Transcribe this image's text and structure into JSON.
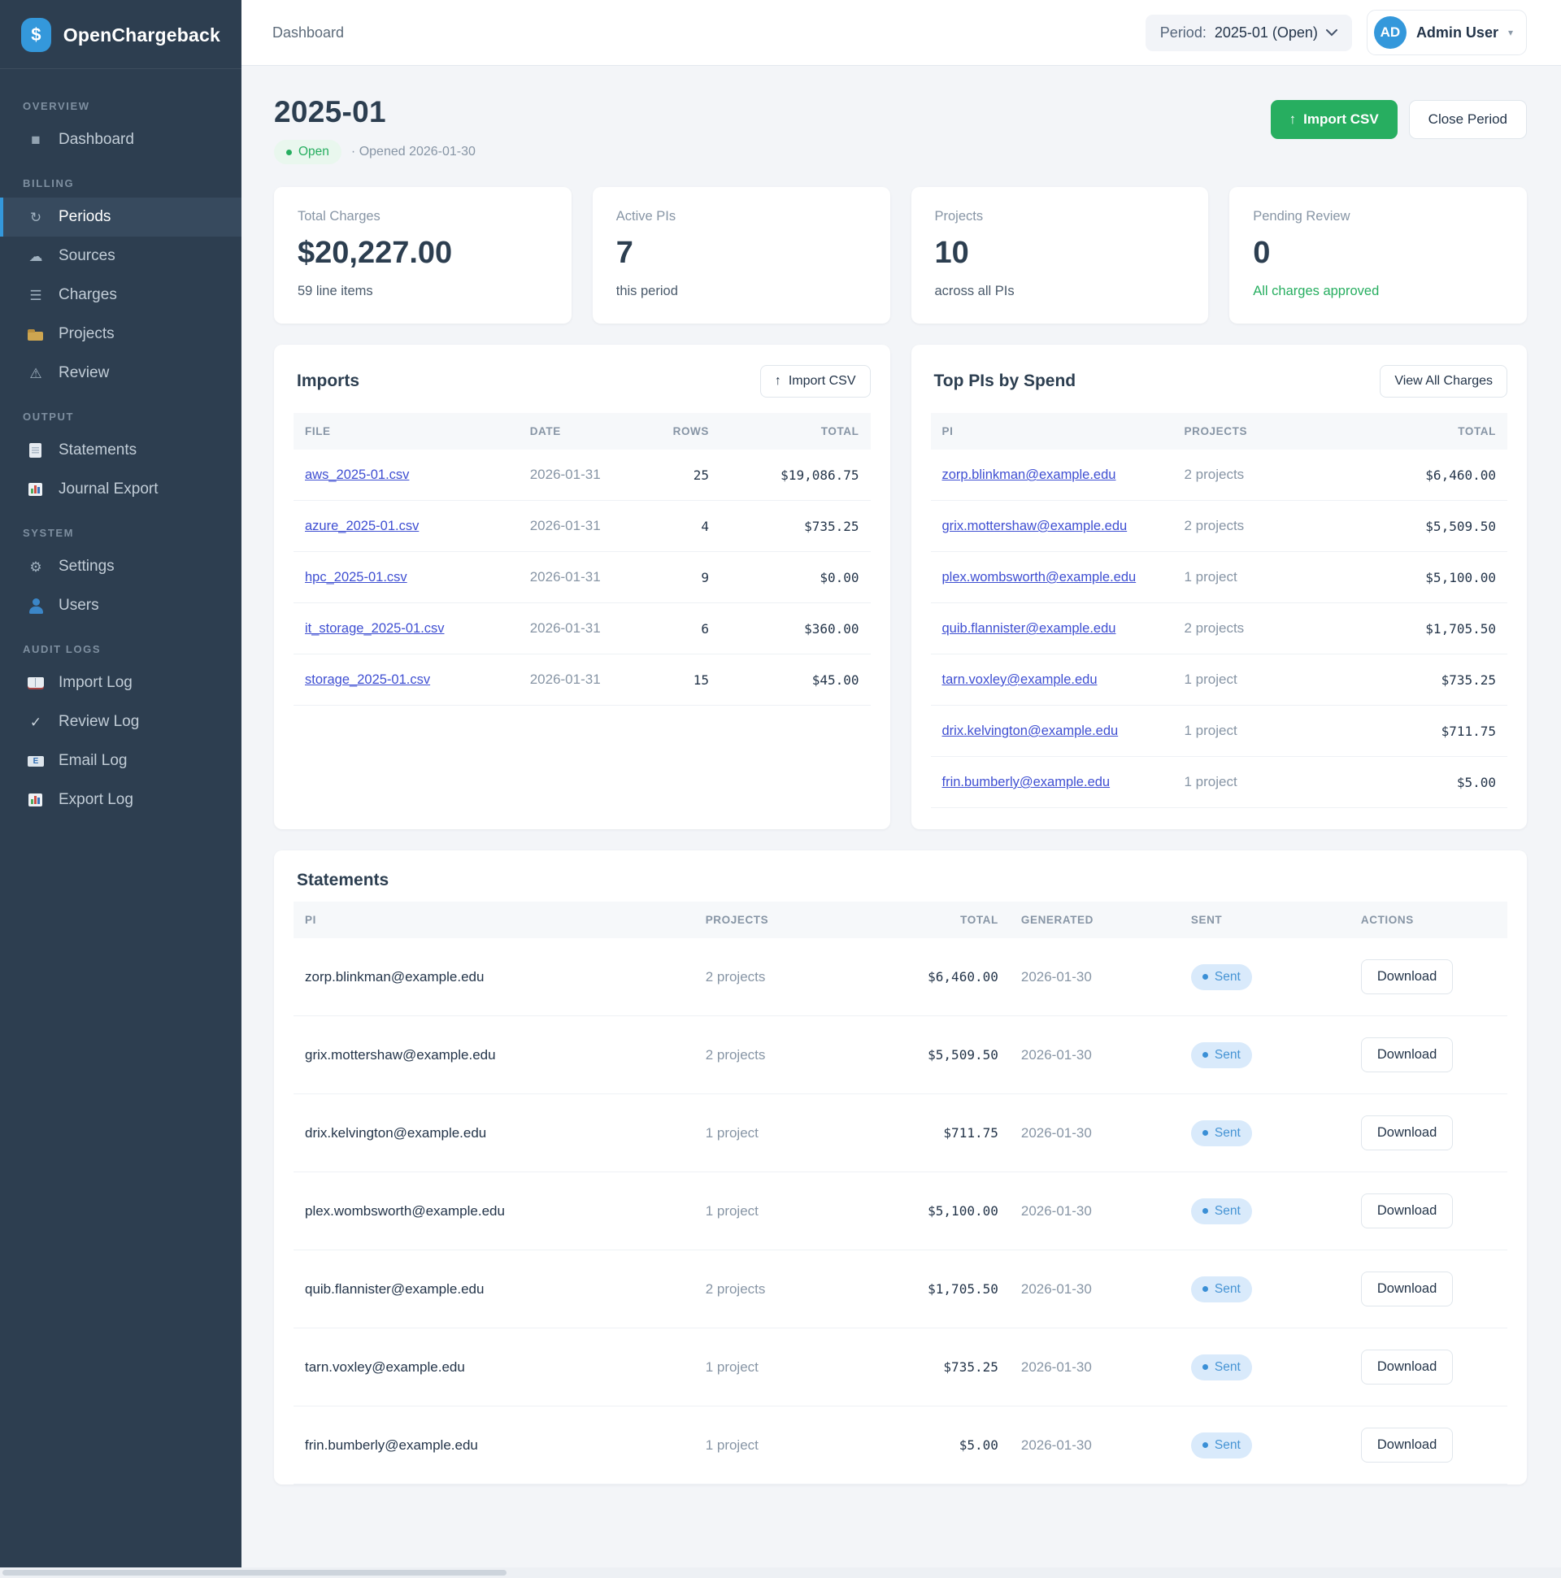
{
  "app": {
    "name": "OpenChargeback",
    "logo_glyph": "$"
  },
  "colors": {
    "accent_green": "#27ae60",
    "accent_blue": "#3498db",
    "link_blue": "#3f4fd2",
    "sidebar_bg": "#2d3e50"
  },
  "sidebar": {
    "sections": [
      {
        "label": "OVERVIEW",
        "items": [
          {
            "label": "Dashboard",
            "icon": "dashboard-icon",
            "glyph": "■",
            "active": false
          }
        ]
      },
      {
        "label": "BILLING",
        "items": [
          {
            "label": "Periods",
            "icon": "periods-icon",
            "glyph": "↻",
            "active": true
          },
          {
            "label": "Sources",
            "icon": "cloud-icon",
            "glyph": "☁",
            "active": false
          },
          {
            "label": "Charges",
            "icon": "list-icon",
            "glyph": "☰",
            "active": false
          },
          {
            "label": "Projects",
            "icon": "folder-icon",
            "glyph": "",
            "active": false
          },
          {
            "label": "Review",
            "icon": "warning-icon",
            "glyph": "⚠",
            "active": false
          }
        ]
      },
      {
        "label": "OUTPUT",
        "items": [
          {
            "label": "Statements",
            "icon": "document-icon",
            "glyph": "",
            "active": false
          },
          {
            "label": "Journal Export",
            "icon": "chart-icon",
            "glyph": "",
            "active": false
          }
        ]
      },
      {
        "label": "SYSTEM",
        "items": [
          {
            "label": "Settings",
            "icon": "gear-icon",
            "glyph": "⚙",
            "active": false
          },
          {
            "label": "Users",
            "icon": "user-icon",
            "glyph": "",
            "active": false
          }
        ]
      },
      {
        "label": "AUDIT LOGS",
        "items": [
          {
            "label": "Import Log",
            "icon": "book-icon",
            "glyph": "",
            "active": false
          },
          {
            "label": "Review Log",
            "icon": "review-log-icon",
            "glyph": "✓",
            "active": false
          },
          {
            "label": "Email Log",
            "icon": "envelope-icon",
            "glyph": "",
            "active": false
          },
          {
            "label": "Export Log",
            "icon": "chart-icon",
            "glyph": "",
            "active": false
          }
        ]
      }
    ]
  },
  "topbar": {
    "breadcrumb": "Dashboard",
    "period_label": "Period:",
    "period_value": "2025-01 (Open)",
    "avatar_initials": "AD",
    "user_name": "Admin User",
    "user_caret": "▾"
  },
  "page_header": {
    "title": "2025-01",
    "status_badge": "Open",
    "opened_text": "· Opened 2026-01-30",
    "import_icon": "↑",
    "import_button": "Import CSV",
    "close_button": "Close Period"
  },
  "stats": [
    {
      "label": "Total Charges",
      "value": "$20,227.00",
      "note": "59 line items",
      "note_green": false
    },
    {
      "label": "Active PIs",
      "value": "7",
      "note": "this period",
      "note_green": false
    },
    {
      "label": "Projects",
      "value": "10",
      "note": "across all PIs",
      "note_green": false
    },
    {
      "label": "Pending Review",
      "value": "0",
      "note": "All charges approved",
      "note_green": true
    }
  ],
  "imports_panel": {
    "title": "Imports",
    "button_icon": "↑",
    "button_label": "Import CSV",
    "columns": [
      "FILE",
      "DATE",
      "ROWS",
      "TOTAL"
    ],
    "rows": [
      {
        "file": "aws_2025-01.csv",
        "date": "2026-01-31",
        "rows": "25",
        "total": "$19,086.75"
      },
      {
        "file": "azure_2025-01.csv",
        "date": "2026-01-31",
        "rows": "4",
        "total": "$735.25"
      },
      {
        "file": "hpc_2025-01.csv",
        "date": "2026-01-31",
        "rows": "9",
        "total": "$0.00"
      },
      {
        "file": "it_storage_2025-01.csv",
        "date": "2026-01-31",
        "rows": "6",
        "total": "$360.00"
      },
      {
        "file": "storage_2025-01.csv",
        "date": "2026-01-31",
        "rows": "15",
        "total": "$45.00"
      }
    ]
  },
  "top_pis_panel": {
    "title": "Top PIs by Spend",
    "button_label": "View All Charges",
    "columns": [
      "PI",
      "PROJECTS",
      "TOTAL"
    ],
    "rows": [
      {
        "pi": "zorp.blinkman@example.edu",
        "projects": "2 projects",
        "total": "$6,460.00"
      },
      {
        "pi": "grix.mottershaw@example.edu",
        "projects": "2 projects",
        "total": "$5,509.50"
      },
      {
        "pi": "plex.wombsworth@example.edu",
        "projects": "1 project",
        "total": "$5,100.00"
      },
      {
        "pi": "quib.flannister@example.edu",
        "projects": "2 projects",
        "total": "$1,705.50"
      },
      {
        "pi": "tarn.voxley@example.edu",
        "projects": "1 project",
        "total": "$735.25"
      },
      {
        "pi": "drix.kelvington@example.edu",
        "projects": "1 project",
        "total": "$711.75"
      },
      {
        "pi": "frin.bumberly@example.edu",
        "projects": "1 project",
        "total": "$5.00"
      }
    ]
  },
  "statements_panel": {
    "title": "Statements",
    "columns": [
      "PI",
      "PROJECTS",
      "TOTAL",
      "GENERATED",
      "SENT",
      "ACTIONS"
    ],
    "sent_label": "Sent",
    "download_label": "Download",
    "rows": [
      {
        "pi": "zorp.blinkman@example.edu",
        "projects": "2 projects",
        "total": "$6,460.00",
        "generated": "2026-01-30"
      },
      {
        "pi": "grix.mottershaw@example.edu",
        "projects": "2 projects",
        "total": "$5,509.50",
        "generated": "2026-01-30"
      },
      {
        "pi": "drix.kelvington@example.edu",
        "projects": "1 project",
        "total": "$711.75",
        "generated": "2026-01-30"
      },
      {
        "pi": "plex.wombsworth@example.edu",
        "projects": "1 project",
        "total": "$5,100.00",
        "generated": "2026-01-30"
      },
      {
        "pi": "quib.flannister@example.edu",
        "projects": "2 projects",
        "total": "$1,705.50",
        "generated": "2026-01-30"
      },
      {
        "pi": "tarn.voxley@example.edu",
        "projects": "1 project",
        "total": "$735.25",
        "generated": "2026-01-30"
      },
      {
        "pi": "frin.bumberly@example.edu",
        "projects": "1 project",
        "total": "$5.00",
        "generated": "2026-01-30"
      }
    ]
  }
}
